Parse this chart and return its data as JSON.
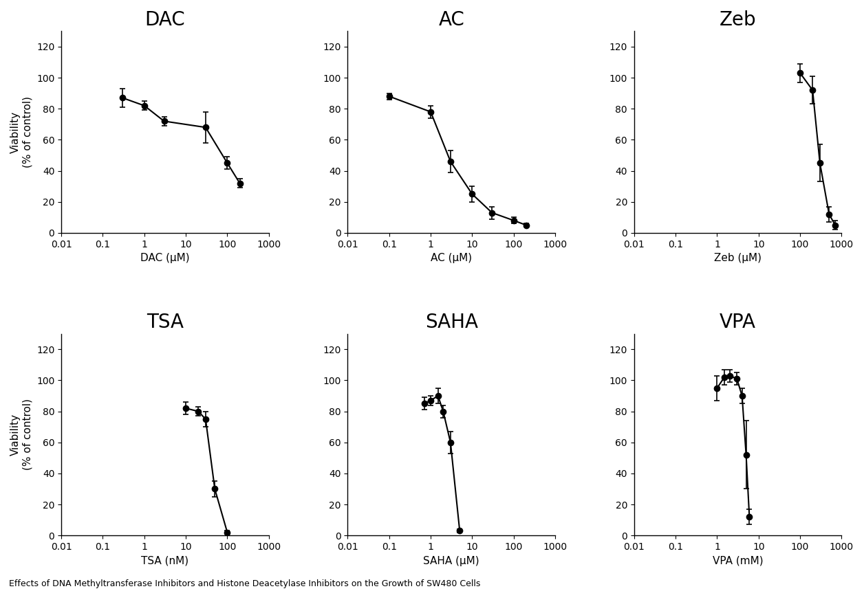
{
  "panels": [
    {
      "title": "DAC",
      "xlabel": "DAC (μM)",
      "xlim": [
        0.01,
        1000
      ],
      "ylim": [
        0,
        130
      ],
      "yticks": [
        0,
        20,
        40,
        60,
        80,
        100,
        120
      ],
      "x": [
        0.3,
        1,
        3,
        30,
        100,
        200
      ],
      "y": [
        87,
        82,
        72,
        68,
        45,
        32
      ],
      "yerr": [
        6,
        3,
        3,
        10,
        4,
        3
      ]
    },
    {
      "title": "AC",
      "xlabel": "AC (μM)",
      "xlim": [
        0.01,
        1000
      ],
      "ylim": [
        0,
        130
      ],
      "yticks": [
        0,
        20,
        40,
        60,
        80,
        100,
        120
      ],
      "x": [
        0.1,
        1,
        3,
        10,
        30,
        100,
        200
      ],
      "y": [
        88,
        78,
        46,
        25,
        13,
        8,
        5
      ],
      "yerr": [
        2,
        4,
        7,
        5,
        4,
        2,
        1
      ]
    },
    {
      "title": "Zeb",
      "xlabel": "Zeb (μM)",
      "xlim": [
        0.01,
        1000
      ],
      "ylim": [
        0,
        130
      ],
      "yticks": [
        0,
        20,
        40,
        60,
        80,
        100,
        120
      ],
      "x": [
        100,
        200,
        300,
        500,
        700
      ],
      "y": [
        103,
        92,
        45,
        12,
        5
      ],
      "yerr": [
        6,
        9,
        12,
        5,
        3
      ]
    },
    {
      "title": "TSA",
      "xlabel": "TSA (nM)",
      "xlim": [
        0.01,
        1000
      ],
      "ylim": [
        0,
        130
      ],
      "yticks": [
        0,
        20,
        40,
        60,
        80,
        100,
        120
      ],
      "x": [
        10,
        20,
        30,
        50,
        100
      ],
      "y": [
        82,
        80,
        75,
        30,
        2
      ],
      "yerr": [
        4,
        3,
        5,
        5,
        1
      ]
    },
    {
      "title": "SAHA",
      "xlabel": "SAHA (μM)",
      "xlim": [
        0.01,
        1000
      ],
      "ylim": [
        0,
        130
      ],
      "yticks": [
        0,
        20,
        40,
        60,
        80,
        100,
        120
      ],
      "x": [
        0.7,
        1.0,
        1.5,
        2.0,
        3.0,
        5.0
      ],
      "y": [
        85,
        87,
        90,
        80,
        60,
        3
      ],
      "yerr": [
        4,
        3,
        5,
        4,
        7,
        1
      ]
    },
    {
      "title": "VPA",
      "xlabel": "VPA (mM)",
      "xlim": [
        0.01,
        1000
      ],
      "ylim": [
        0,
        130
      ],
      "yticks": [
        0,
        20,
        40,
        60,
        80,
        100,
        120
      ],
      "x": [
        1.0,
        1.5,
        2.0,
        3.0,
        4.0,
        5.0,
        6.0
      ],
      "y": [
        95,
        102,
        103,
        101,
        90,
        52,
        12
      ],
      "yerr": [
        8,
        5,
        4,
        4,
        5,
        22,
        5
      ]
    }
  ],
  "ylabel": "Viability\n(% of control)",
  "figure_caption": "Effects of DNA Methyltransferase Inhibitors and Histone Deacetylase Inhibitors on the Growth of SW480 Cells",
  "marker_color": "black",
  "marker_size": 6,
  "line_width": 1.5,
  "title_fontsize": 20,
  "label_fontsize": 11,
  "tick_fontsize": 10,
  "caption_fontsize": 9
}
